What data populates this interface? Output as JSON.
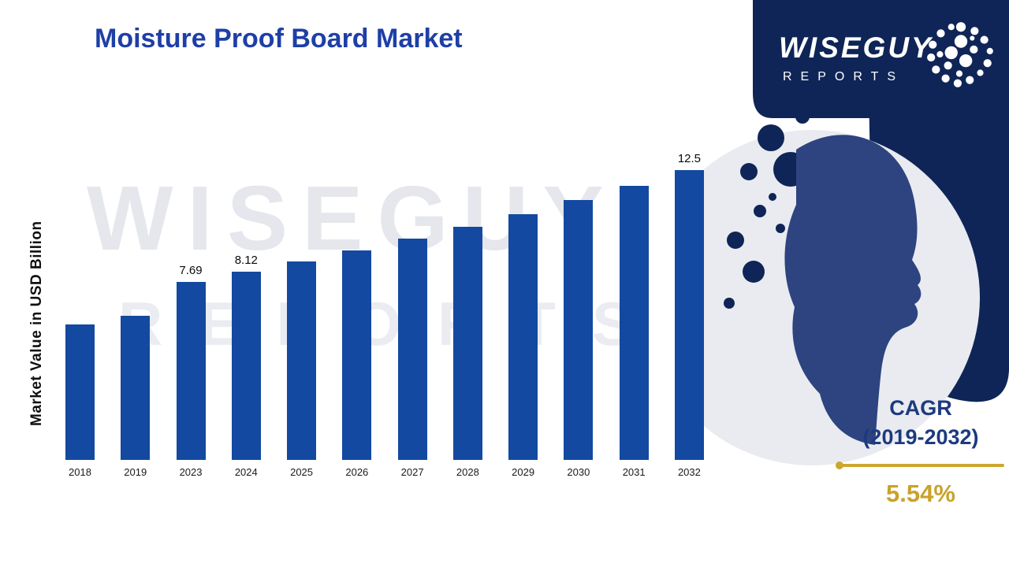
{
  "title": "Moisture Proof Board Market",
  "watermark": {
    "line1": "WISEGUY",
    "line2": "REPORTS"
  },
  "logo": {
    "line1": "WISEGUY",
    "line2": "REPORTS"
  },
  "chart_data": {
    "type": "bar",
    "title": "Moisture Proof Board Market",
    "xlabel": "",
    "ylabel": "Market Value in USD Billion",
    "categories": [
      "2018",
      "2019",
      "2023",
      "2024",
      "2025",
      "2026",
      "2027",
      "2028",
      "2029",
      "2030",
      "2031",
      "2032"
    ],
    "values": [
      5.85,
      6.2,
      7.69,
      8.12,
      8.55,
      9.02,
      9.53,
      10.05,
      10.6,
      11.2,
      11.83,
      12.5
    ],
    "bar_labels": [
      "",
      "",
      "7.69",
      "8.12",
      "",
      "",
      "",
      "",
      "",
      "",
      "",
      "12.5"
    ],
    "bar_color": "#1349a0",
    "ylim": [
      0,
      13
    ],
    "grid": false,
    "legend": false
  },
  "cagr": {
    "label": "CAGR",
    "range": "(2019-2032)",
    "value": "5.54%",
    "accent_color": "#cda62f",
    "text_color": "#1d3a7e"
  },
  "colors": {
    "navy": "#0f2557",
    "face": "#2e4480",
    "circle": "#e9ebf0",
    "title_blue": "#1e3fa6"
  }
}
